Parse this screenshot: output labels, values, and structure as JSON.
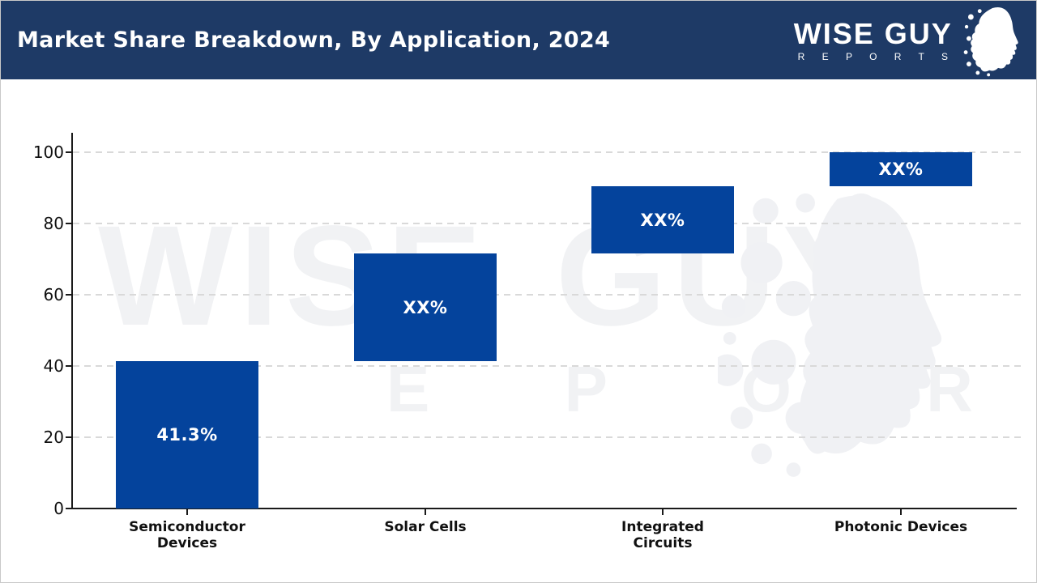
{
  "header": {
    "title": "Market Share Breakdown, By Application, 2024",
    "logo_line1": "WISE GUY",
    "logo_line2": "R E P O R T S"
  },
  "watermark": {
    "line1": "WISE GUY",
    "line2": "R E P O R T S"
  },
  "colors": {
    "header_bg": "#1E3A66",
    "bar": "#04439C",
    "bar_label": "#FFFFFF",
    "grid": "#D9D9D9",
    "axis": "#1A1A1A",
    "watermark": "#F1F2F4"
  },
  "chart_data": {
    "type": "bar",
    "subtype": "waterfall",
    "title": "Market Share Breakdown, By Application, 2024",
    "categories": [
      "Semiconductor Devices",
      "Solar Cells",
      "Integrated Circuits",
      "Photonic Devices"
    ],
    "categories_lines": [
      [
        "Semiconductor",
        "Devices"
      ],
      [
        "Solar Cells"
      ],
      [
        "Integrated",
        "Circuits"
      ],
      [
        "Photonic Devices"
      ]
    ],
    "segments": [
      {
        "category": "Semiconductor Devices",
        "label": "41.3%",
        "start": 0,
        "end": 41.3
      },
      {
        "category": "Solar Cells",
        "label": "XX%",
        "start": 41.3,
        "end": 71.5
      },
      {
        "category": "Integrated Circuits",
        "label": "XX%",
        "start": 71.5,
        "end": 90.5
      },
      {
        "category": "Photonic Devices",
        "label": "XX%",
        "start": 90.5,
        "end": 100
      }
    ],
    "ylim": [
      0,
      100
    ],
    "yticks": [
      0,
      20,
      40,
      60,
      80,
      100
    ],
    "xlabel": "",
    "ylabel": "",
    "grid": "horizontal-dashed",
    "legend": "none"
  }
}
